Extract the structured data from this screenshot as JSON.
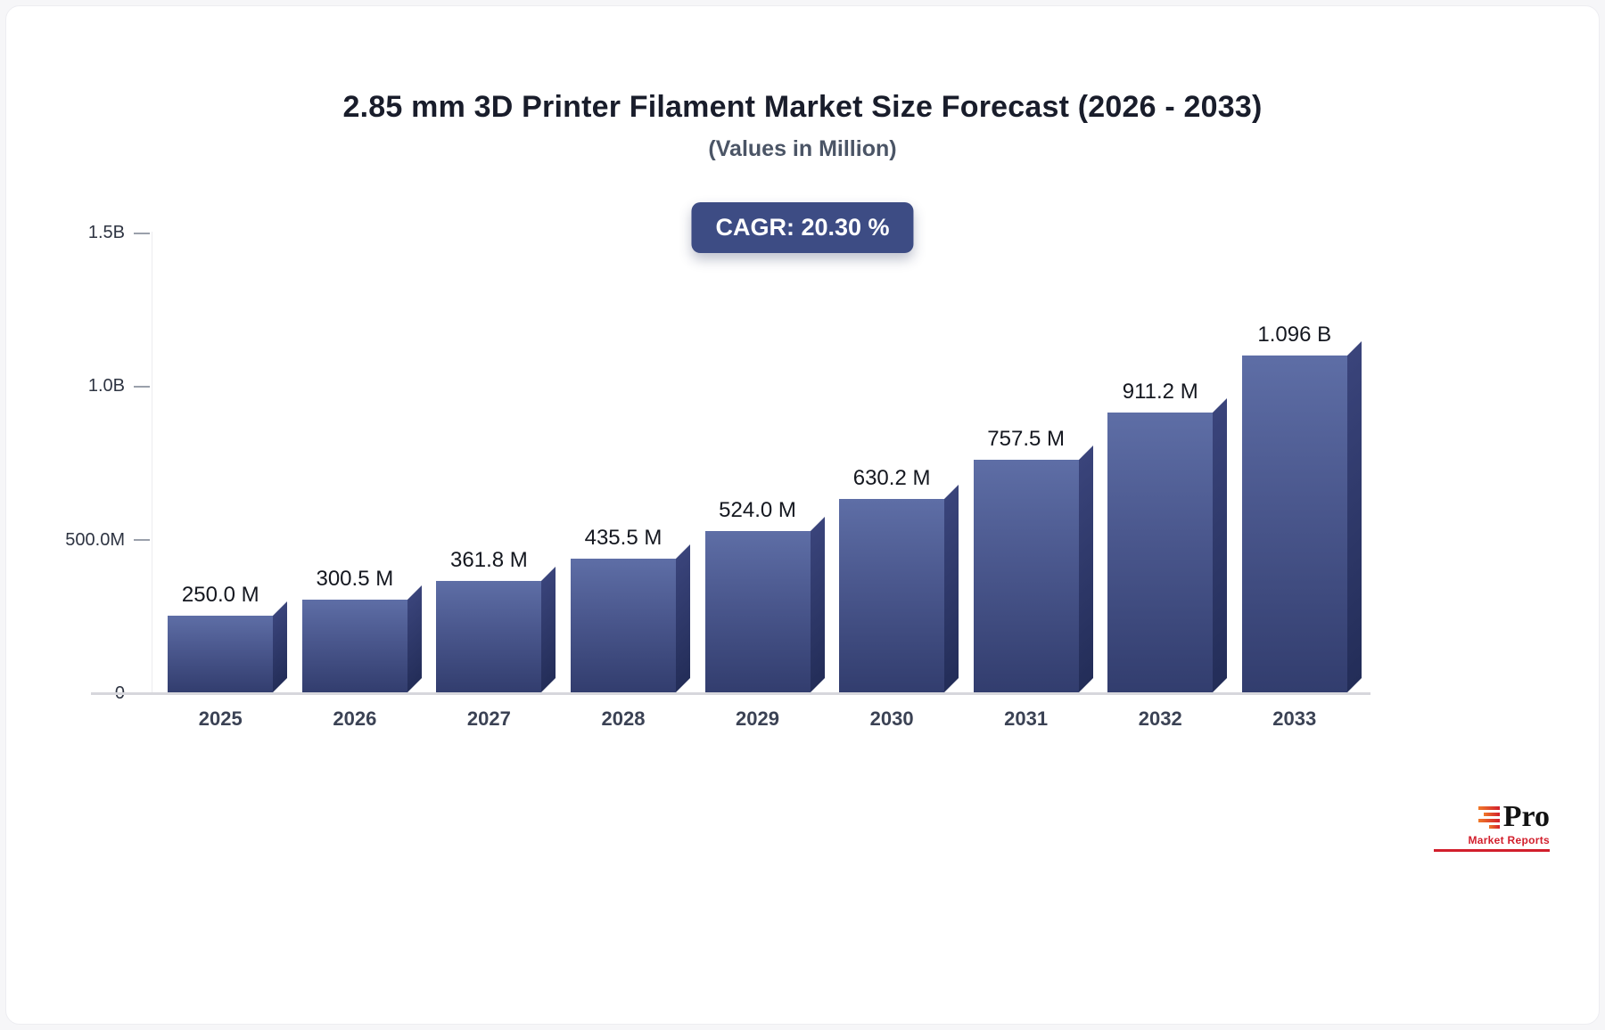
{
  "title": "2.85 mm 3D Printer Filament Market Size Forecast (2026 - 2033)",
  "subtitle": "(Values in Million)",
  "badge": {
    "label": "CAGR: 20.30 %"
  },
  "logo": {
    "name": "Pro",
    "tagline": "Market Reports"
  },
  "colors": {
    "badge_bg": "#3d4c84",
    "bar_front_top": "#5e6ea6",
    "bar_front_bottom": "#323d6e",
    "bar_side": "#232d58",
    "baseline": "#d7d7dc",
    "logo_red": "#d21f2c"
  },
  "chart_data": {
    "type": "bar",
    "title": "2.85 mm 3D Printer Filament Market Size Forecast (2026 - 2033)",
    "subtitle": "(Values in Million)",
    "cagr": "20.30 %",
    "categories": [
      "2025",
      "2026",
      "2027",
      "2028",
      "2029",
      "2030",
      "2031",
      "2032",
      "2033"
    ],
    "values": [
      250.0,
      300.5,
      361.8,
      435.5,
      524.0,
      630.2,
      757.5,
      911.2,
      1096.0
    ],
    "value_labels": [
      "250.0 M",
      "300.5 M",
      "361.8 M",
      "435.5 M",
      "524.0 M",
      "630.2 M",
      "757.5 M",
      "911.2 M",
      "1.096 B"
    ],
    "unit": "Million",
    "xlabel": "",
    "ylabel": "",
    "ylim": [
      0,
      1500
    ],
    "y_ticks": [
      "0",
      "500.0M",
      "1.0B",
      "1.5B"
    ],
    "grid": false,
    "legend": false
  }
}
